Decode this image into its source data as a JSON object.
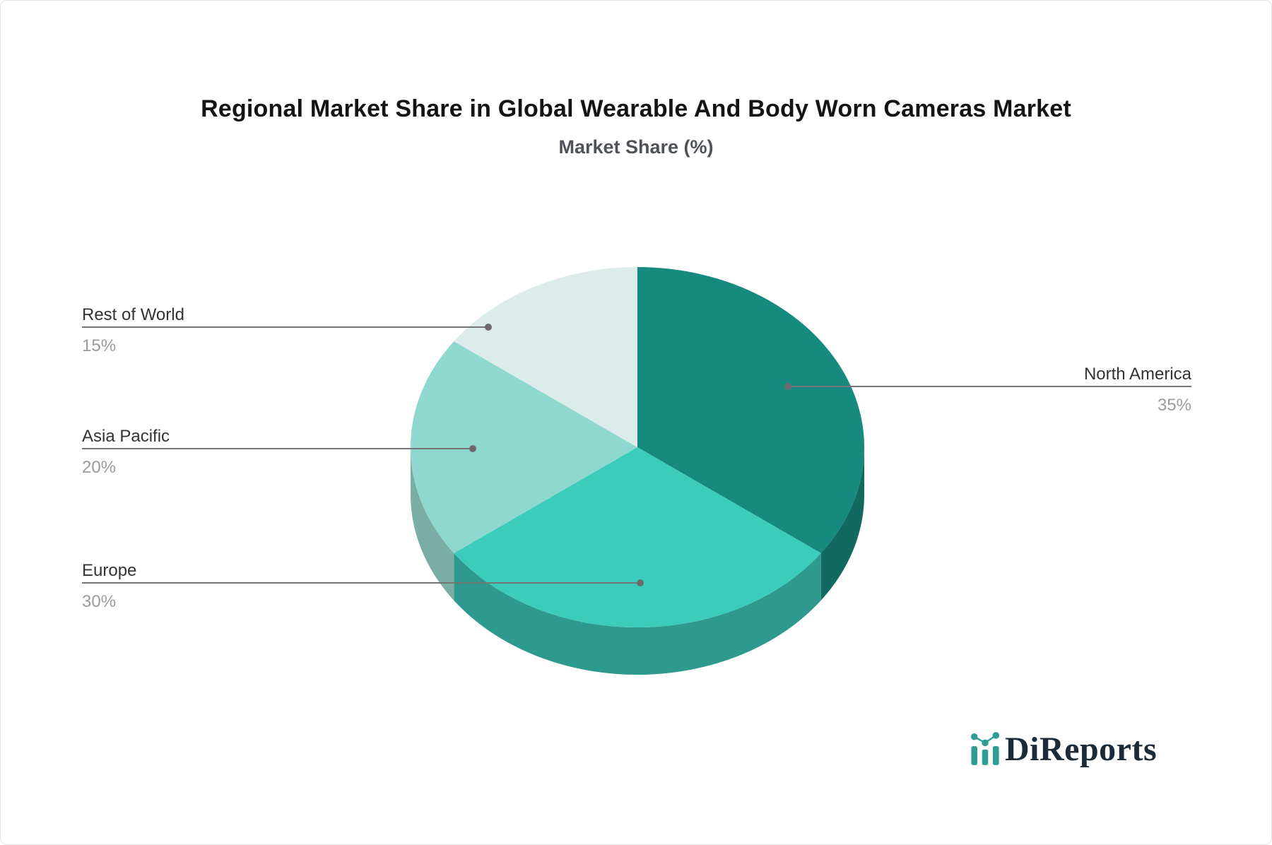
{
  "header": {
    "title": "Regional Market Share in Global Wearable And Body Worn Cameras Market",
    "subtitle": "Market Share (%)"
  },
  "branding": {
    "logo_text": "DiReports",
    "logo_icon": "bar-chart-with-dots-icon",
    "logo_icon_color": "#2f9d94",
    "logo_text_color": "#1c2b3a"
  },
  "chart_data": {
    "type": "pie",
    "title": "Regional Market Share in Global Wearable And Body Worn Cameras Market",
    "subtitle": "Market Share (%)",
    "unit": "%",
    "style": "3d",
    "start_angle_deg": 90,
    "direction": "clockwise",
    "slices": [
      {
        "label": "North America",
        "value": 35,
        "pct_label": "35%",
        "color": "#168a7e",
        "side_color": "#11695f"
      },
      {
        "label": "Europe",
        "value": 30,
        "pct_label": "30%",
        "color": "#3cccbc",
        "side_color": "#2e9a8e"
      },
      {
        "label": "Asia Pacific",
        "value": 20,
        "pct_label": "20%",
        "color": "#8fd8cf",
        "side_color": "#7aada4"
      },
      {
        "label": "Rest of World",
        "value": 15,
        "pct_label": "15%",
        "color": "#dcecea",
        "side_color": null
      }
    ],
    "layout": {
      "legend": "callout-labels",
      "callout_line_color": "#757575",
      "label_color": "#333333",
      "pct_color": "#9b9b9b",
      "background": "#ffffff"
    }
  }
}
